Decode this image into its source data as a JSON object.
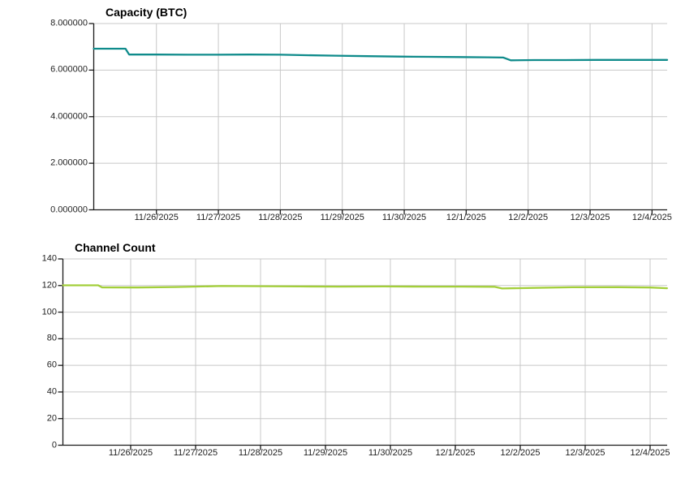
{
  "window": {
    "background": "#ffffff"
  },
  "colors": {
    "grid": "#c8c8c8",
    "axis": "#1a1a1a",
    "tick": "#1a1a1a",
    "label_text": "#1f1f1f",
    "title_text": "#000000",
    "capacity_line": "#0f8b8b",
    "channel_line": "#a3cf3a"
  },
  "chart_data": [
    {
      "type": "line",
      "title": "Capacity (BTC)",
      "xlabel": "",
      "ylabel": "",
      "legend": "none",
      "grid": true,
      "line_color": "#0f8b8b",
      "ylim": [
        0,
        8
      ],
      "y_ticks": [
        0,
        2,
        4,
        6,
        8
      ],
      "y_tick_labels": [
        "0.000000",
        "2.000000",
        "4.000000",
        "6.000000",
        "8.000000"
      ],
      "x_unit": "days after 11/25/2025 00:00",
      "xlim": [
        0,
        9.26
      ],
      "x_ticks": [
        1,
        2,
        3,
        4,
        5,
        6,
        7,
        8,
        9
      ],
      "x_tick_labels": [
        "11/26/2025",
        "11/27/2025",
        "11/28/2025",
        "11/29/2025",
        "11/30/2025",
        "12/1/2025",
        "12/2/2025",
        "12/3/2025",
        "12/4/2025"
      ],
      "points": [
        [
          0,
          6.92
        ],
        [
          0.5,
          6.92
        ],
        [
          0.56,
          6.67
        ],
        [
          1.0,
          6.67
        ],
        [
          1.5,
          6.66
        ],
        [
          2.0,
          6.66
        ],
        [
          2.5,
          6.67
        ],
        [
          3.0,
          6.66
        ],
        [
          3.4,
          6.64
        ],
        [
          3.9,
          6.62
        ],
        [
          4.4,
          6.6
        ],
        [
          4.9,
          6.58
        ],
        [
          5.4,
          6.57
        ],
        [
          5.9,
          6.56
        ],
        [
          6.35,
          6.55
        ],
        [
          6.6,
          6.54
        ],
        [
          6.72,
          6.42
        ],
        [
          7.1,
          6.43
        ],
        [
          7.6,
          6.43
        ],
        [
          8.1,
          6.44
        ],
        [
          8.7,
          6.44
        ],
        [
          9.26,
          6.44
        ]
      ]
    },
    {
      "type": "line",
      "title": "Channel Count",
      "xlabel": "",
      "ylabel": "",
      "legend": "none",
      "grid": true,
      "line_color": "#a3cf3a",
      "ylim": [
        0,
        140
      ],
      "y_ticks": [
        0,
        20,
        40,
        60,
        80,
        100,
        120,
        140
      ],
      "y_tick_labels": [
        "0",
        "20",
        "40",
        "60",
        "80",
        "100",
        "120",
        "140"
      ],
      "x_unit": "days after 11/25/2025 00:00",
      "xlim": [
        0,
        9.26
      ],
      "x_ticks": [
        1,
        2,
        3,
        4,
        5,
        6,
        7,
        8,
        9
      ],
      "x_tick_labels": [
        "11/26/2025",
        "11/27/2025",
        "11/28/2025",
        "11/29/2025",
        "11/30/2025",
        "12/1/2025",
        "12/2/2025",
        "12/3/2025",
        "12/4/2025"
      ],
      "points": [
        [
          0,
          120.2
        ],
        [
          0.5,
          120.2
        ],
        [
          0.56,
          118.6
        ],
        [
          1.1,
          118.5
        ],
        [
          1.7,
          118.9
        ],
        [
          2.4,
          119.6
        ],
        [
          3.0,
          119.5
        ],
        [
          3.6,
          119.3
        ],
        [
          4.2,
          119.2
        ],
        [
          4.9,
          119.3
        ],
        [
          5.5,
          119.2
        ],
        [
          6.1,
          119.2
        ],
        [
          6.6,
          119.1
        ],
        [
          6.72,
          117.8
        ],
        [
          7.2,
          118.2
        ],
        [
          7.8,
          118.7
        ],
        [
          8.5,
          118.8
        ],
        [
          9.0,
          118.5
        ],
        [
          9.26,
          118.0
        ]
      ]
    }
  ]
}
